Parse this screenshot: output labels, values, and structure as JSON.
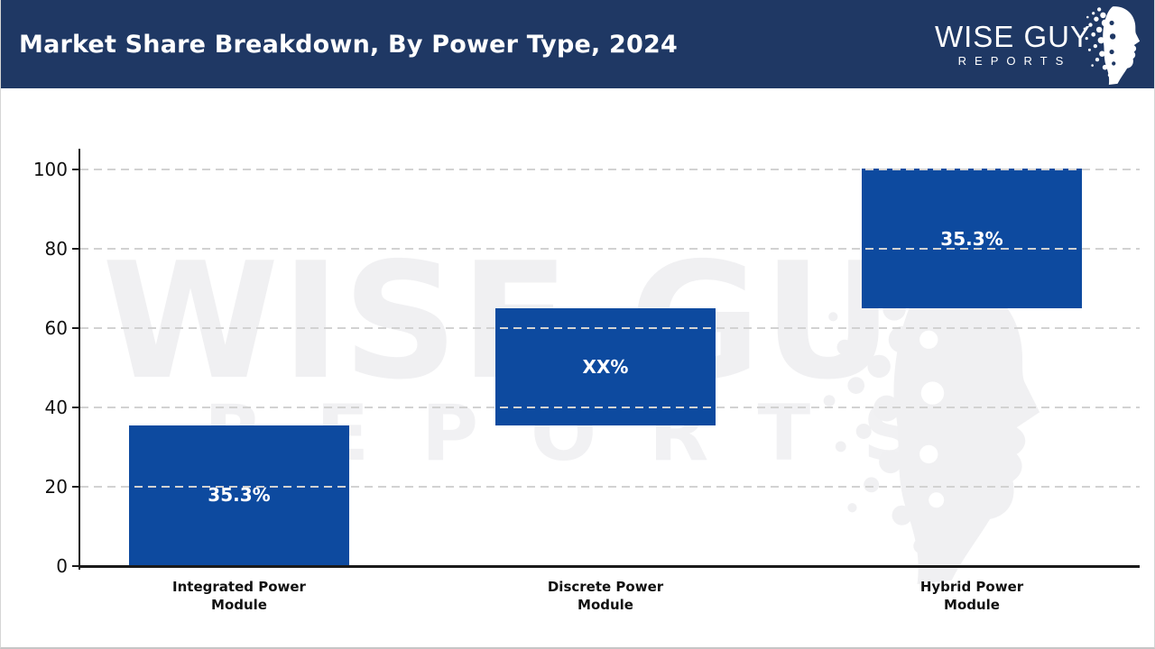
{
  "header": {
    "title": "Market Share Breakdown, By Power Type, 2024",
    "logo": {
      "line1": "WISE GUY",
      "line2": "REPORTS"
    }
  },
  "watermark": {
    "line1": "WISE GUY",
    "line2": "REPORTS"
  },
  "chart_data": {
    "type": "bar",
    "subtype": "waterfall",
    "title": "Market Share Breakdown, By Power Type, 2024",
    "categories": [
      "Integrated Power\nModule",
      "Discrete Power\nModule",
      "Hybrid Power\nModule"
    ],
    "segments": [
      {
        "category": "Integrated Power Module",
        "start": 0,
        "end": 35.3,
        "label": "35.3%"
      },
      {
        "category": "Discrete Power Module",
        "start": 35.3,
        "end": 64.7,
        "label": "XX%"
      },
      {
        "category": "Hybrid Power Module",
        "start": 64.7,
        "end": 100,
        "label": "35.3%"
      }
    ],
    "ylim": [
      0,
      100
    ],
    "yticks": [
      0,
      20,
      40,
      60,
      80,
      100
    ],
    "grid": "horizontal-dashed",
    "legend": "none",
    "bar_color": "#0d4a9f",
    "bar_label_color": "#ffffff"
  },
  "colors": {
    "header_bg": "#1f3864",
    "bar": "#0d4a9f",
    "watermark": "#f0f0f2",
    "gridline": "#d2d2d2",
    "axis": "#1a1a1a"
  }
}
